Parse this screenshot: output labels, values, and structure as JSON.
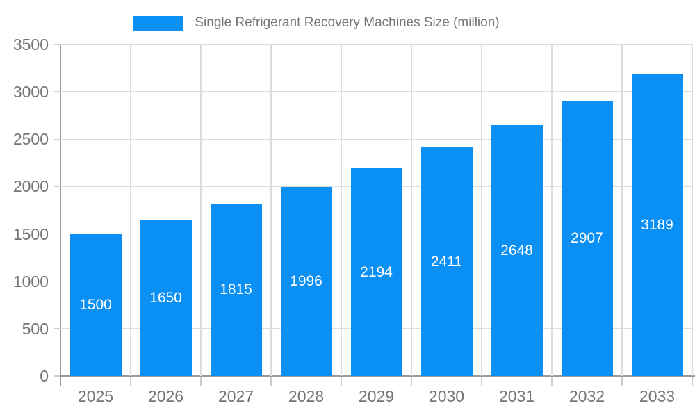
{
  "legend": {
    "label": "Single Refrigerant Recovery Machines Size (million)",
    "swatch_color": "#0a8ff5"
  },
  "chart_data": {
    "type": "bar",
    "title": "Single Refrigerant Recovery Machines Size (million)",
    "categories": [
      "2025",
      "2026",
      "2027",
      "2028",
      "2029",
      "2030",
      "2031",
      "2032",
      "2033"
    ],
    "series": [
      {
        "name": "Single Refrigerant Recovery Machines Size (million)",
        "values": [
          1500,
          1650,
          1815,
          1996,
          2194,
          2411,
          2648,
          2907,
          3189
        ]
      }
    ],
    "value_labels_shown": true,
    "xlabel": "",
    "ylabel": "",
    "ylim": [
      0,
      3500
    ],
    "yticks": [
      0,
      500,
      1000,
      1500,
      2000,
      2500,
      3000,
      3500
    ],
    "grid": true,
    "legend_position": "top",
    "colors": {
      "bar": "#0a8ff5",
      "grid": "#dcdcdc",
      "axis_line": "#999999",
      "axis_label": "#757575",
      "value_label": "#ffffff",
      "background": "#ffffff"
    }
  }
}
